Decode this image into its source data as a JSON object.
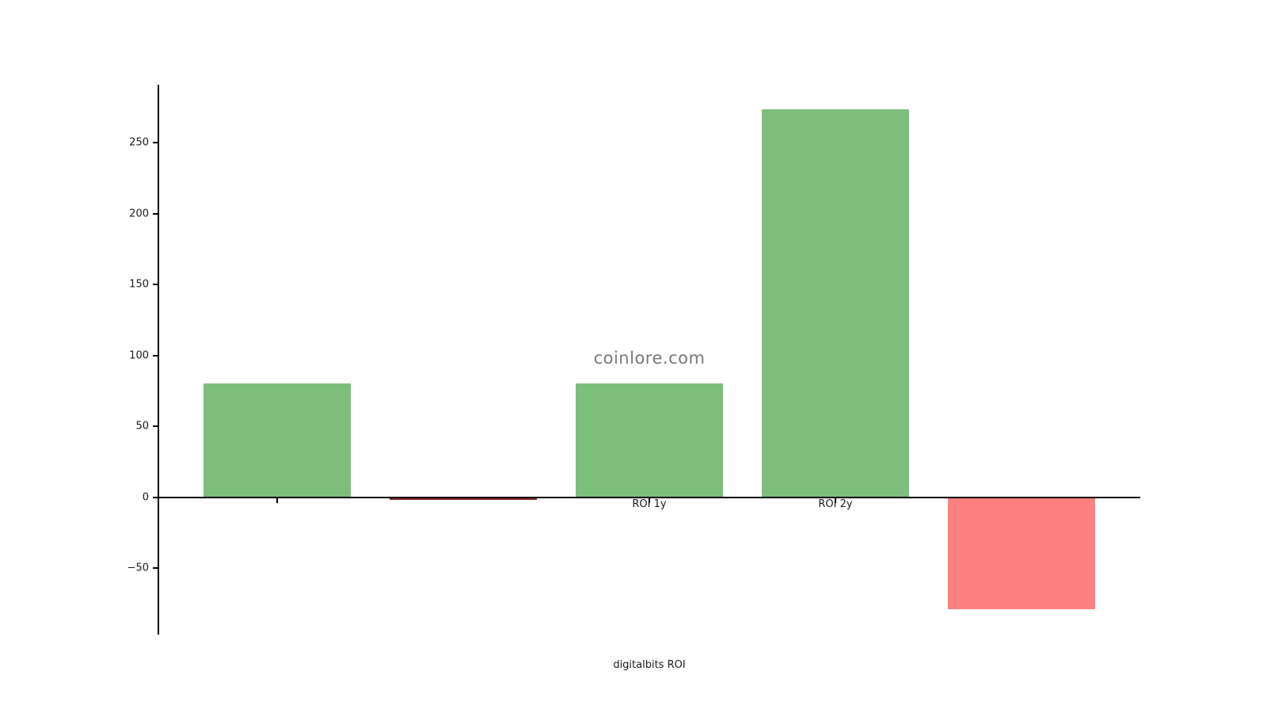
{
  "watermark": {
    "text": "coinlore.com",
    "color": "#787878"
  },
  "chart_data": {
    "type": "bar",
    "title": "digitalbits ROI",
    "xlabel": "digitalbits ROI",
    "ylabel": "",
    "categories": [
      "",
      "",
      "ROI 1y",
      "ROI 2y",
      ""
    ],
    "values": [
      80,
      -1.5,
      80,
      273.5,
      -78.5
    ],
    "bar_colors": [
      "#7dbe7d",
      "#8b2a2a",
      "#7dbe7d",
      "#7dbe7d",
      "#ff8080"
    ],
    "positive_color": "#7dbe7d",
    "negative_color": "#ff8080",
    "yticks": [
      -50,
      0,
      50,
      100,
      150,
      200,
      250
    ],
    "ytick_labels": [
      "−50",
      "0",
      "50",
      "100",
      "150",
      "200",
      "250"
    ],
    "xticks_visible": [
      true,
      false,
      true,
      true,
      false
    ],
    "ylim": [
      -97,
      291
    ],
    "grid": false,
    "legend": null,
    "axis_color": "#000000",
    "text_color": "#1a1a1a"
  }
}
